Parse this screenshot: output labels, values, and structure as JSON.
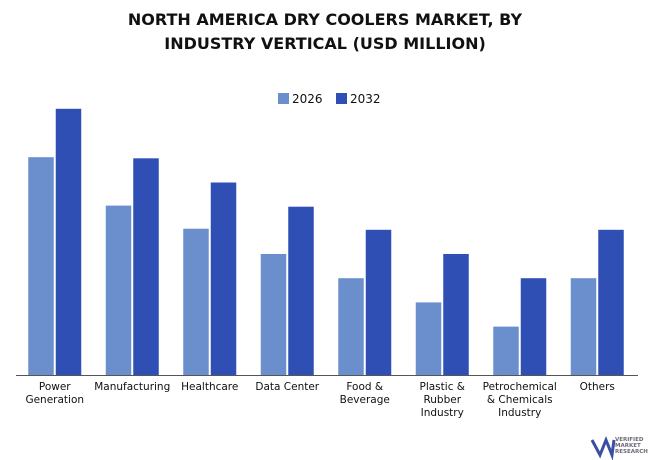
{
  "chart_data": {
    "type": "bar",
    "title": "NORTH AMERICA DRY COOLERS MARKET, BY INDUSTRY VERTICAL (USD MILLION)",
    "categories": [
      "Power\nGeneration",
      "Manufacturing",
      "Healthcare",
      "Data Center",
      "Food &\nBeverage",
      "Plastic &\nRubber\nIndustry",
      "Petrochemical\n& Chemicals\nIndustry",
      "Others"
    ],
    "series": [
      {
        "name": "2026",
        "color": "#6b8fcc",
        "values": [
          198,
          154,
          133,
          110,
          88,
          66,
          44,
          88
        ]
      },
      {
        "name": "2032",
        "color": "#2f4fb5",
        "values": [
          242,
          197,
          175,
          153,
          132,
          110,
          88,
          132
        ]
      }
    ],
    "ylim": [
      0,
      250
    ],
    "legend": "top",
    "watermark": [
      "VERIFIED",
      "MARKET",
      "RESEARCH"
    ]
  }
}
